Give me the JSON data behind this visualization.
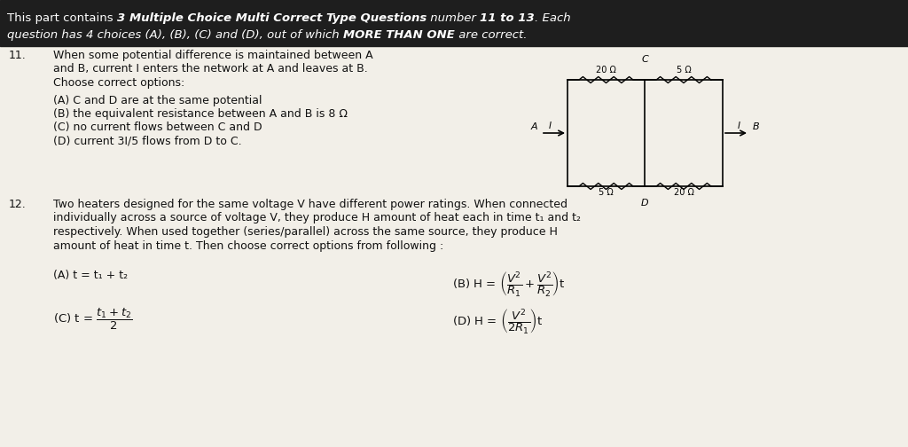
{
  "bg_color": "#f2efe8",
  "header_bg": "#1e1e1e",
  "header_text_color": "#ffffff",
  "text_color": "#111111",
  "figsize": [
    10.24,
    5.04
  ],
  "dpi": 100,
  "q11_a": "(A) C and D are at the same potential",
  "q11_b": "(B) the equivalent resistance between A and B is 8 Ω",
  "q11_c": "(C) no current flows between C and D",
  "q11_d": "(D) current 3I/5 flows from D to C.",
  "q12_text_line1": "Two heaters designed for the same voltage V have different power ratings. When connected",
  "q12_text_line2": "individually across a source of voltage V, they produce H amount of heat each in time t₁ and t₂",
  "q12_text_line3": "respectively. When used together (series/parallel) across the same source, they produce H",
  "q12_text_line4": "amount of heat in time t. Then choose correct options from following :"
}
